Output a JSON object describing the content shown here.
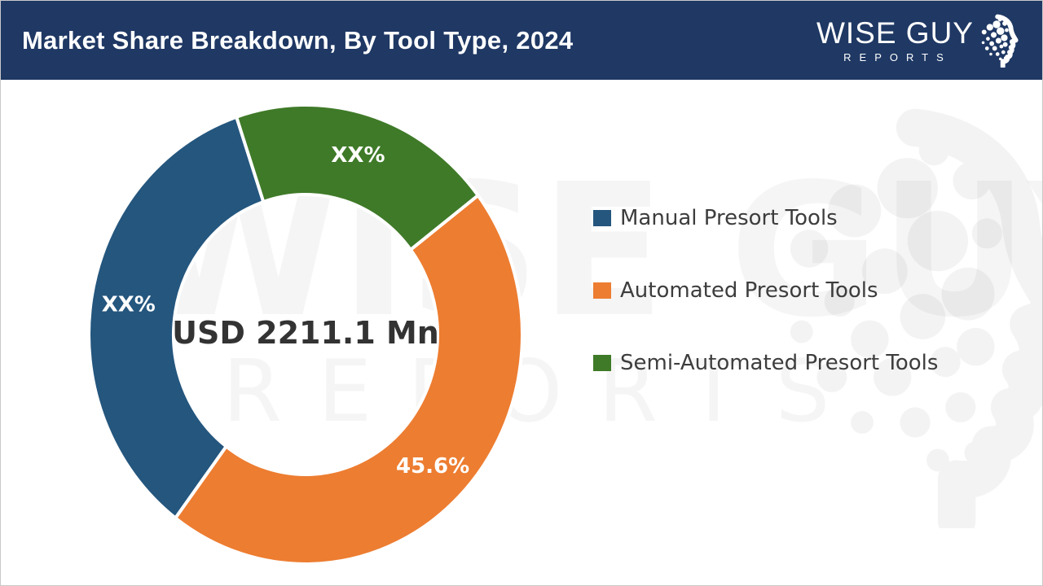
{
  "header": {
    "title": "Market Share Breakdown, By Tool Type, 2024",
    "bg_color": "#1F3864",
    "logo": {
      "line1": "WISE GUY",
      "line2": "REPORTS",
      "face_icon": "wiseguy-face-icon"
    }
  },
  "chart_data": {
    "type": "pie",
    "subtype": "donut",
    "title": "Market Share Breakdown, By Tool Type, 2024",
    "center_label": "USD 2211.1 Mn",
    "legend_position": "right",
    "segments": [
      {
        "name": "Manual Presort Tools",
        "color": "#24567E",
        "label": "XX%",
        "value_percent": null,
        "start_deg": 216.9,
        "end_deg": 341.4
      },
      {
        "name": "Automated Presort Tools",
        "color": "#ED7D31",
        "label": "45.6%",
        "value_percent": 45.6,
        "start_deg": 52.7,
        "end_deg": 216.9
      },
      {
        "name": "Semi-Automated Presort Tools",
        "color": "#3F7A28",
        "label": "XX%",
        "value_percent": null,
        "start_deg": 341.4,
        "end_deg": 52.7
      }
    ]
  },
  "watermark": {
    "line1": "WISE GUY",
    "line2": "REPORTS"
  }
}
